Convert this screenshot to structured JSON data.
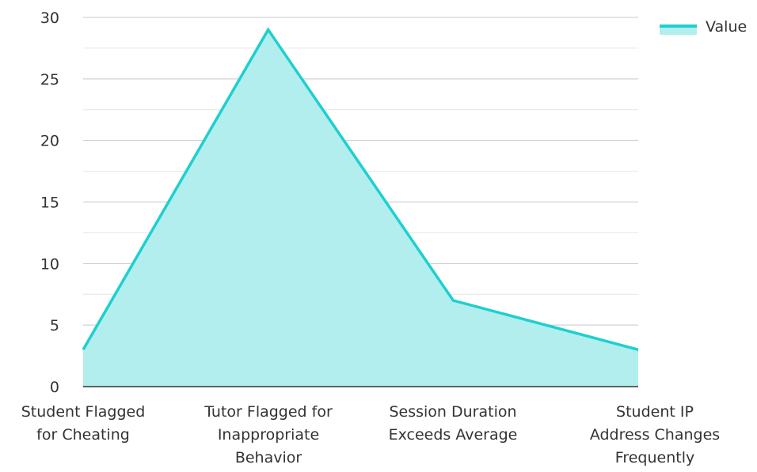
{
  "chart_data": {
    "type": "area",
    "categories": [
      [
        "Student Flagged",
        "for Cheating"
      ],
      [
        "Tutor Flagged for",
        "Inappropriate",
        "Behavior"
      ],
      [
        "Session Duration",
        "Exceeds Average"
      ],
      [
        "Student IP",
        "Address Changes",
        "Frequently"
      ]
    ],
    "series": [
      {
        "name": "Value",
        "values": [
          3,
          29,
          7,
          3
        ],
        "color": "#1fcfcf",
        "fill": "#b2eeee"
      }
    ],
    "ylim": [
      0,
      30
    ],
    "yticks": [
      0,
      5,
      10,
      15,
      20,
      25,
      30
    ],
    "grid": true,
    "legend": "top-right"
  }
}
